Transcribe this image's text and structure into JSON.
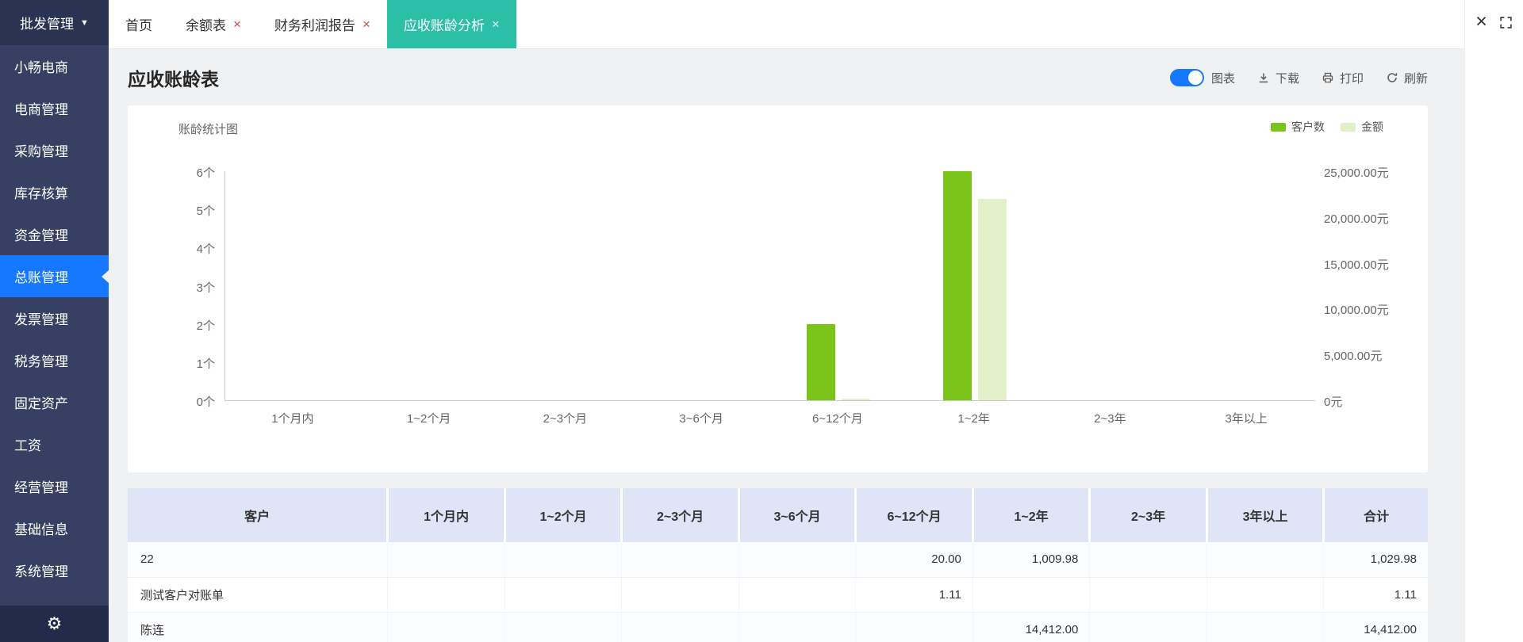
{
  "icons": {
    "close": "×",
    "caret_down": "▼",
    "gear": "⚙"
  },
  "sidebar": {
    "header_label": "批发管理",
    "items": [
      {
        "label": "小畅电商",
        "active": false
      },
      {
        "label": "电商管理",
        "active": false
      },
      {
        "label": "采购管理",
        "active": false
      },
      {
        "label": "库存核算",
        "active": false
      },
      {
        "label": "资金管理",
        "active": false
      },
      {
        "label": "总账管理",
        "active": true
      },
      {
        "label": "发票管理",
        "active": false
      },
      {
        "label": "税务管理",
        "active": false
      },
      {
        "label": "固定资产",
        "active": false
      },
      {
        "label": "工资",
        "active": false
      },
      {
        "label": "经营管理",
        "active": false
      },
      {
        "label": "基础信息",
        "active": false
      },
      {
        "label": "系统管理",
        "active": false
      }
    ]
  },
  "tabbar": {
    "tabs": [
      {
        "label": "首页",
        "closable": false,
        "active": false
      },
      {
        "label": "余额表",
        "closable": true,
        "active": false
      },
      {
        "label": "财务利润报告",
        "closable": true,
        "active": false
      },
      {
        "label": "应收账龄分析",
        "closable": true,
        "active": true
      }
    ]
  },
  "page": {
    "title": "应收账龄表",
    "toolbar": {
      "toggle_label": "图表",
      "toggle_on": true,
      "download_label": "下载",
      "print_label": "打印",
      "refresh_label": "刷新"
    }
  },
  "chart_data": {
    "type": "bar",
    "title": "账龄统计图",
    "categories": [
      "1个月内",
      "1~2个月",
      "2~3个月",
      "3~6个月",
      "6~12个月",
      "1~2年",
      "2~3年",
      "3年以上"
    ],
    "series": [
      {
        "name": "客户数",
        "axis": "left",
        "color": "#7bc41a",
        "values": [
          0,
          0,
          0,
          0,
          2,
          6,
          0,
          0
        ]
      },
      {
        "name": "金额",
        "axis": "right",
        "color": "#e3efc8",
        "values": [
          0,
          0,
          0,
          0,
          21.11,
          22000,
          0,
          0
        ]
      }
    ],
    "left_axis": {
      "min": 0,
      "max": 6,
      "ticks": [
        "0个",
        "1个",
        "2个",
        "3个",
        "4个",
        "5个",
        "6个"
      ]
    },
    "right_axis": {
      "min": 0,
      "max": 25000,
      "ticks": [
        "0元",
        "5,000.00元",
        "10,000.00元",
        "15,000.00元",
        "20,000.00元",
        "25,000.00元"
      ]
    },
    "legend_position": "top-right",
    "grid": false
  },
  "table": {
    "headers": [
      "客户",
      "1个月内",
      "1~2个月",
      "2~3个月",
      "3~6个月",
      "6~12个月",
      "1~2年",
      "2~3年",
      "3年以上",
      "合计"
    ],
    "rows": [
      [
        "22",
        "",
        "",
        "",
        "",
        "20.00",
        "1,009.98",
        "",
        "",
        "1,029.98"
      ],
      [
        "测试客户对账单",
        "",
        "",
        "",
        "",
        "1.11",
        "",
        "",
        "",
        "1.11"
      ],
      [
        "陈连",
        "",
        "",
        "",
        "",
        "",
        "14,412.00",
        "",
        "",
        "14,412.00"
      ]
    ]
  }
}
